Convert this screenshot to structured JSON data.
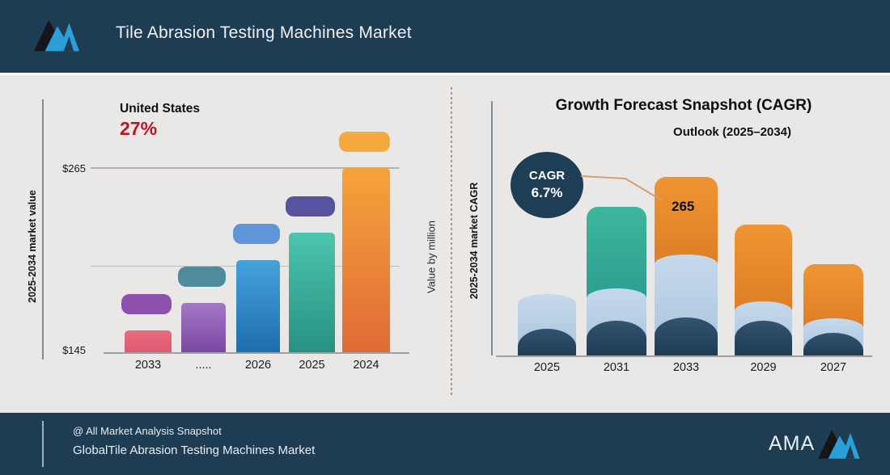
{
  "header": {
    "title": "Tile Abrasion Testing Machines Market",
    "logo": "AMA"
  },
  "footer": {
    "line1": "@ All Market Analysis Snapshot",
    "line2": "GlobalTile Abrasion Testing Machines Market",
    "brand": "AMA"
  },
  "colors": {
    "header_bg": "#1e3d53",
    "content_bg": "#e9e8e7",
    "accent_red": "#bd1521",
    "badge_navy": "#1e3e55",
    "connector_tan": "#cfa07a",
    "logo_black": "#16161a",
    "logo_blue": "#2d9fd8"
  },
  "chart_data": [
    {
      "type": "bar",
      "title": "United States",
      "highlight": "27%",
      "ylabel": "2025-2034 market value",
      "ylabel_right": "Value by million",
      "ylim": [
        145,
        265
      ],
      "yticks": [
        {
          "label": "$265",
          "value": 265
        },
        {
          "label": "$145",
          "value": 145
        }
      ],
      "grid": "two horizontal gridlines at $265 and midpoint",
      "categories": [
        "2033",
        ".....",
        "2026",
        "2025",
        "2024"
      ],
      "values": [
        159,
        177,
        205,
        223,
        265
      ],
      "bars": [
        {
          "label": "2033",
          "value": 159,
          "color_top": "#ea6a7e",
          "color_bottom": "#df5a70",
          "cap_color": "#8d50ae"
        },
        {
          "label": ".....",
          "value": 177,
          "color_top": "#a478c8",
          "color_bottom": "#7b48a1",
          "cap_color": "#4d8b9d"
        },
        {
          "label": "2026",
          "value": 205,
          "color_top": "#45a3da",
          "color_bottom": "#1e6dac",
          "cap_color": "#6096d8"
        },
        {
          "label": "2025",
          "value": 223,
          "color_top": "#4cc5ae",
          "color_bottom": "#279184",
          "cap_color": "#59539f"
        },
        {
          "label": "2024",
          "value": 265,
          "color_top": "#f5a33b",
          "color_bottom": "#e06b36",
          "cap_color": "#f6a93e"
        }
      ]
    },
    {
      "type": "stacked-bar",
      "title": "Growth Forecast Snapshot (CAGR)",
      "subtitle": "Outlook (2025–2034)",
      "ylabel": "2025-2034 market CAGR",
      "badge": {
        "line1": "CAGR",
        "line2": "6.7%"
      },
      "annotation": {
        "text": "265",
        "category": "2033"
      },
      "unit": "relative height (px)",
      "categories": [
        "2025",
        "2031",
        "2033",
        "2029",
        "2027"
      ],
      "series": [
        {
          "name": "base (dark navy)",
          "color": "#2e4d68",
          "values": [
            34,
            44,
            48,
            44,
            29
          ]
        },
        {
          "name": "mid (light blue)",
          "color": "#b7cde2",
          "values": [
            43,
            40,
            78,
            24,
            18
          ]
        },
        {
          "name": "top (accent)",
          "colors": [
            "",
            "#3db69e",
            "#ef9533",
            "#ef9533",
            "#ef9533"
          ],
          "values": [
            0,
            101,
            96,
            95,
            67
          ]
        }
      ],
      "totals": [
        77,
        185,
        222,
        163,
        114
      ],
      "legend": "none",
      "grid": "off"
    }
  ]
}
